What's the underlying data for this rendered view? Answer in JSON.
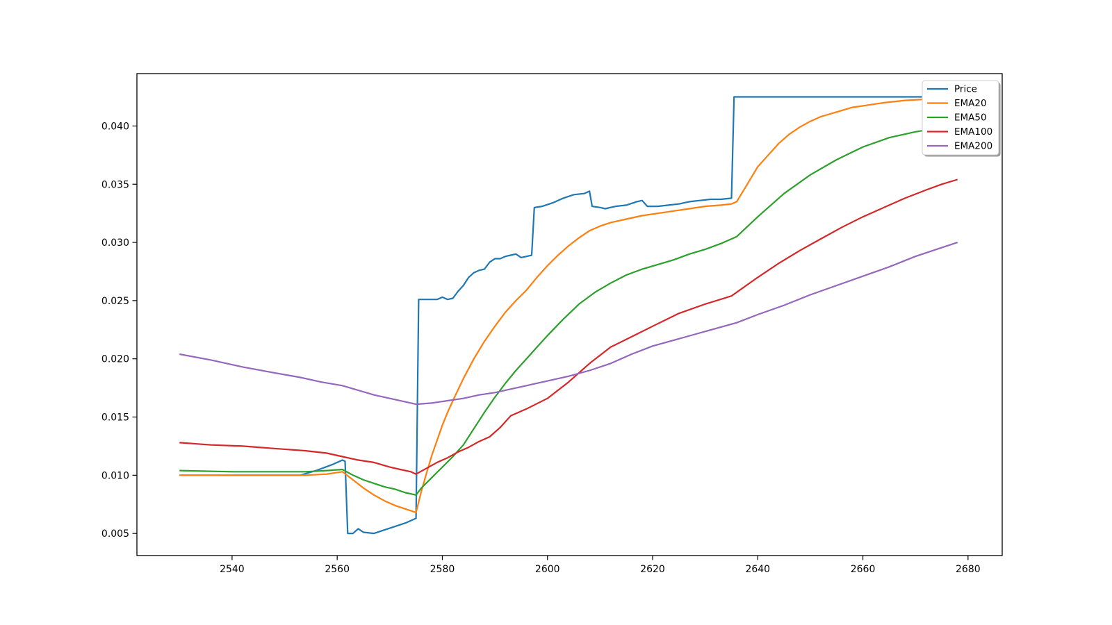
{
  "chart_data": {
    "type": "line",
    "title": "",
    "xlabel": "",
    "ylabel": "",
    "grid": false,
    "xlim": [
      2521.9,
      2686.5
    ],
    "ylim": [
      0.0031,
      0.0445
    ],
    "x_ticks": [
      2540,
      2560,
      2580,
      2600,
      2620,
      2640,
      2660,
      2680
    ],
    "x_tick_labels": [
      "2540",
      "2560",
      "2580",
      "2600",
      "2620",
      "2640",
      "2660",
      "2680"
    ],
    "y_ticks": [
      0.005,
      0.01,
      0.015,
      0.02,
      0.025,
      0.03,
      0.035,
      0.04
    ],
    "y_tick_labels": [
      "0.005",
      "0.010",
      "0.015",
      "0.020",
      "0.025",
      "0.030",
      "0.035",
      "0.040"
    ],
    "legend": {
      "position": "upper right",
      "entries": [
        {
          "label": "Price",
          "color": "#1f77b4"
        },
        {
          "label": "EMA20",
          "color": "#ff7f0e"
        },
        {
          "label": "EMA50",
          "color": "#2ca02c"
        },
        {
          "label": "EMA100",
          "color": "#d62728"
        },
        {
          "label": "EMA200",
          "color": "#9467bd"
        }
      ]
    },
    "series": [
      {
        "name": "Price",
        "color": "#1f77b4",
        "points": [
          [
            2530,
            0.01
          ],
          [
            2536,
            0.01
          ],
          [
            2542,
            0.01
          ],
          [
            2548,
            0.01
          ],
          [
            2553,
            0.01
          ],
          [
            2556,
            0.0104
          ],
          [
            2559,
            0.0109
          ],
          [
            2561,
            0.0113
          ],
          [
            2561.5,
            0.0112
          ],
          [
            2562,
            0.005
          ],
          [
            2563,
            0.005
          ],
          [
            2564,
            0.0054
          ],
          [
            2565,
            0.0051
          ],
          [
            2567,
            0.005
          ],
          [
            2569,
            0.0053
          ],
          [
            2571,
            0.0056
          ],
          [
            2573,
            0.0059
          ],
          [
            2575,
            0.0063
          ],
          [
            2575.5,
            0.0251
          ],
          [
            2577,
            0.0251
          ],
          [
            2579,
            0.0251
          ],
          [
            2580,
            0.0253
          ],
          [
            2581,
            0.0251
          ],
          [
            2582,
            0.0252
          ],
          [
            2583,
            0.0258
          ],
          [
            2584,
            0.0263
          ],
          [
            2585,
            0.027
          ],
          [
            2586,
            0.0274
          ],
          [
            2587,
            0.0276
          ],
          [
            2588,
            0.0277
          ],
          [
            2589,
            0.0283
          ],
          [
            2590,
            0.0286
          ],
          [
            2591,
            0.0286
          ],
          [
            2592,
            0.0288
          ],
          [
            2593,
            0.0289
          ],
          [
            2594,
            0.029
          ],
          [
            2595,
            0.0287
          ],
          [
            2596,
            0.0288
          ],
          [
            2597,
            0.0289
          ],
          [
            2597.5,
            0.033
          ],
          [
            2599,
            0.0331
          ],
          [
            2601,
            0.0334
          ],
          [
            2603,
            0.0338
          ],
          [
            2605,
            0.0341
          ],
          [
            2607,
            0.0342
          ],
          [
            2608,
            0.0344
          ],
          [
            2608.5,
            0.0331
          ],
          [
            2610,
            0.033
          ],
          [
            2611,
            0.0329
          ],
          [
            2613,
            0.0331
          ],
          [
            2615,
            0.0332
          ],
          [
            2617,
            0.0335
          ],
          [
            2618,
            0.0336
          ],
          [
            2619,
            0.0331
          ],
          [
            2621,
            0.0331
          ],
          [
            2623,
            0.0332
          ],
          [
            2625,
            0.0333
          ],
          [
            2627,
            0.0335
          ],
          [
            2629,
            0.0336
          ],
          [
            2631,
            0.0337
          ],
          [
            2633,
            0.0337
          ],
          [
            2635,
            0.0338
          ],
          [
            2635.5,
            0.0425
          ],
          [
            2640,
            0.0425
          ],
          [
            2648,
            0.0425
          ],
          [
            2656,
            0.0425
          ],
          [
            2664,
            0.0425
          ],
          [
            2672,
            0.0425
          ],
          [
            2678,
            0.0425
          ]
        ]
      },
      {
        "name": "EMA20",
        "color": "#ff7f0e",
        "points": [
          [
            2530,
            0.01
          ],
          [
            2540,
            0.01
          ],
          [
            2548,
            0.01
          ],
          [
            2554,
            0.01
          ],
          [
            2558,
            0.0101
          ],
          [
            2561,
            0.0103
          ],
          [
            2563,
            0.0096
          ],
          [
            2565,
            0.0089
          ],
          [
            2567,
            0.0083
          ],
          [
            2569,
            0.0078
          ],
          [
            2571,
            0.0074
          ],
          [
            2573,
            0.0071
          ],
          [
            2575,
            0.0068
          ],
          [
            2576,
            0.0086
          ],
          [
            2577,
            0.0102
          ],
          [
            2578,
            0.0117
          ],
          [
            2579,
            0.013
          ],
          [
            2580,
            0.0143
          ],
          [
            2581,
            0.0154
          ],
          [
            2582,
            0.0164
          ],
          [
            2584,
            0.0183
          ],
          [
            2586,
            0.02
          ],
          [
            2588,
            0.0215
          ],
          [
            2590,
            0.0228
          ],
          [
            2592,
            0.024
          ],
          [
            2594,
            0.025
          ],
          [
            2596,
            0.0259
          ],
          [
            2598,
            0.027
          ],
          [
            2600,
            0.028
          ],
          [
            2602,
            0.0289
          ],
          [
            2604,
            0.0297
          ],
          [
            2606,
            0.0304
          ],
          [
            2608,
            0.031
          ],
          [
            2610,
            0.0314
          ],
          [
            2612,
            0.0317
          ],
          [
            2615,
            0.032
          ],
          [
            2618,
            0.0323
          ],
          [
            2621,
            0.0325
          ],
          [
            2624,
            0.0327
          ],
          [
            2627,
            0.0329
          ],
          [
            2630,
            0.0331
          ],
          [
            2633,
            0.0332
          ],
          [
            2635,
            0.0333
          ],
          [
            2636,
            0.0335
          ],
          [
            2638,
            0.035
          ],
          [
            2640,
            0.0365
          ],
          [
            2642,
            0.0375
          ],
          [
            2644,
            0.0385
          ],
          [
            2646,
            0.0393
          ],
          [
            2648,
            0.0399
          ],
          [
            2650,
            0.0404
          ],
          [
            2652,
            0.0408
          ],
          [
            2655,
            0.0412
          ],
          [
            2658,
            0.0416
          ],
          [
            2661,
            0.0418
          ],
          [
            2664,
            0.042
          ],
          [
            2668,
            0.0422
          ],
          [
            2672,
            0.0423
          ],
          [
            2678,
            0.0424
          ]
        ]
      },
      {
        "name": "EMA50",
        "color": "#2ca02c",
        "points": [
          [
            2530,
            0.0104
          ],
          [
            2540,
            0.0103
          ],
          [
            2548,
            0.0103
          ],
          [
            2554,
            0.0103
          ],
          [
            2558,
            0.0104
          ],
          [
            2561,
            0.0105
          ],
          [
            2563,
            0.01
          ],
          [
            2565,
            0.0096
          ],
          [
            2567,
            0.0093
          ],
          [
            2569,
            0.009
          ],
          [
            2571,
            0.0088
          ],
          [
            2573,
            0.0085
          ],
          [
            2575,
            0.0083
          ],
          [
            2576,
            0.0089
          ],
          [
            2578,
            0.0098
          ],
          [
            2580,
            0.0107
          ],
          [
            2582,
            0.0116
          ],
          [
            2584,
            0.0126
          ],
          [
            2586,
            0.014
          ],
          [
            2588,
            0.0154
          ],
          [
            2590,
            0.0167
          ],
          [
            2592,
            0.0179
          ],
          [
            2594,
            0.019
          ],
          [
            2596,
            0.02
          ],
          [
            2598,
            0.021
          ],
          [
            2600,
            0.022
          ],
          [
            2603,
            0.0234
          ],
          [
            2606,
            0.0247
          ],
          [
            2609,
            0.0257
          ],
          [
            2612,
            0.0265
          ],
          [
            2615,
            0.0272
          ],
          [
            2618,
            0.0277
          ],
          [
            2621,
            0.0281
          ],
          [
            2624,
            0.0285
          ],
          [
            2627,
            0.029
          ],
          [
            2630,
            0.0294
          ],
          [
            2633,
            0.0299
          ],
          [
            2636,
            0.0305
          ],
          [
            2640,
            0.0322
          ],
          [
            2645,
            0.0342
          ],
          [
            2650,
            0.0358
          ],
          [
            2655,
            0.0371
          ],
          [
            2660,
            0.0382
          ],
          [
            2665,
            0.039
          ],
          [
            2670,
            0.0395
          ],
          [
            2674,
            0.0398
          ],
          [
            2678,
            0.04
          ]
        ]
      },
      {
        "name": "EMA100",
        "color": "#d62728",
        "points": [
          [
            2530,
            0.0128
          ],
          [
            2536,
            0.0126
          ],
          [
            2542,
            0.0125
          ],
          [
            2548,
            0.0123
          ],
          [
            2554,
            0.0121
          ],
          [
            2558,
            0.0119
          ],
          [
            2561,
            0.0116
          ],
          [
            2564,
            0.0113
          ],
          [
            2567,
            0.0111
          ],
          [
            2570,
            0.0107
          ],
          [
            2572,
            0.0105
          ],
          [
            2574,
            0.0103
          ],
          [
            2575,
            0.0101
          ],
          [
            2577,
            0.0106
          ],
          [
            2579,
            0.0111
          ],
          [
            2581,
            0.0115
          ],
          [
            2583,
            0.012
          ],
          [
            2585,
            0.0124
          ],
          [
            2587,
            0.0129
          ],
          [
            2589,
            0.0133
          ],
          [
            2591,
            0.0141
          ],
          [
            2593,
            0.0151
          ],
          [
            2596,
            0.0157
          ],
          [
            2600,
            0.0166
          ],
          [
            2604,
            0.018
          ],
          [
            2608,
            0.0196
          ],
          [
            2612,
            0.021
          ],
          [
            2616,
            0.0219
          ],
          [
            2620,
            0.0228
          ],
          [
            2625,
            0.0239
          ],
          [
            2630,
            0.0247
          ],
          [
            2635,
            0.0254
          ],
          [
            2640,
            0.027
          ],
          [
            2644,
            0.0282
          ],
          [
            2648,
            0.0293
          ],
          [
            2652,
            0.0303
          ],
          [
            2656,
            0.0313
          ],
          [
            2660,
            0.0322
          ],
          [
            2664,
            0.033
          ],
          [
            2668,
            0.0338
          ],
          [
            2672,
            0.0345
          ],
          [
            2675,
            0.035
          ],
          [
            2678,
            0.0354
          ]
        ]
      },
      {
        "name": "EMA200",
        "color": "#9467bd",
        "points": [
          [
            2530,
            0.0204
          ],
          [
            2536,
            0.0199
          ],
          [
            2542,
            0.0193
          ],
          [
            2548,
            0.0188
          ],
          [
            2553,
            0.0184
          ],
          [
            2557,
            0.018
          ],
          [
            2561,
            0.0177
          ],
          [
            2564,
            0.0173
          ],
          [
            2567,
            0.0169
          ],
          [
            2570,
            0.0166
          ],
          [
            2573,
            0.0163
          ],
          [
            2575,
            0.0161
          ],
          [
            2578,
            0.0162
          ],
          [
            2581,
            0.0164
          ],
          [
            2584,
            0.0166
          ],
          [
            2587,
            0.0169
          ],
          [
            2590,
            0.0171
          ],
          [
            2593,
            0.0174
          ],
          [
            2596,
            0.0177
          ],
          [
            2600,
            0.0181
          ],
          [
            2604,
            0.0185
          ],
          [
            2608,
            0.019
          ],
          [
            2612,
            0.0196
          ],
          [
            2616,
            0.0204
          ],
          [
            2620,
            0.0211
          ],
          [
            2624,
            0.0216
          ],
          [
            2628,
            0.0221
          ],
          [
            2632,
            0.0226
          ],
          [
            2636,
            0.0231
          ],
          [
            2640,
            0.0238
          ],
          [
            2645,
            0.0246
          ],
          [
            2650,
            0.0255
          ],
          [
            2655,
            0.0263
          ],
          [
            2660,
            0.0271
          ],
          [
            2665,
            0.0279
          ],
          [
            2670,
            0.0288
          ],
          [
            2674,
            0.0294
          ],
          [
            2678,
            0.03
          ]
        ]
      }
    ]
  }
}
